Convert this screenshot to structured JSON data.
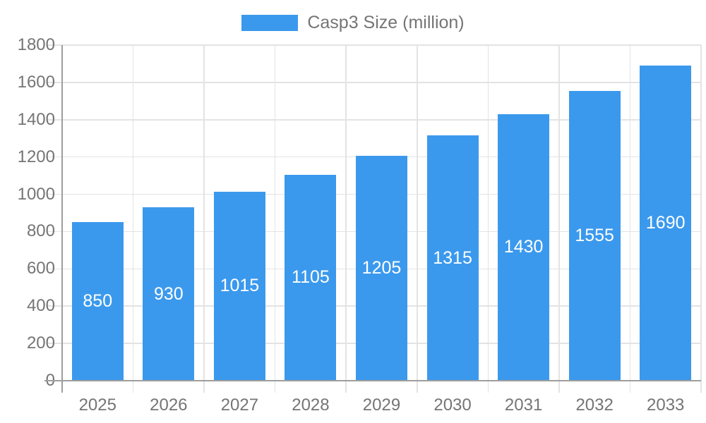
{
  "legend": {
    "label": "Casp3 Size (million)"
  },
  "chart_data": {
    "type": "bar",
    "title": "",
    "xlabel": "",
    "ylabel": "",
    "categories": [
      "2025",
      "2026",
      "2027",
      "2028",
      "2029",
      "2030",
      "2031",
      "2032",
      "2033"
    ],
    "series": [
      {
        "name": "Casp3 Size (million)",
        "values": [
          850,
          930,
          1015,
          1105,
          1205,
          1315,
          1430,
          1555,
          1690
        ]
      }
    ],
    "value_labels": [
      "850",
      "930",
      "1015",
      "1105",
      "1205",
      "1315",
      "1430",
      "1555",
      "1690"
    ],
    "value_label_position": "inside-center",
    "ylim": [
      0,
      1800
    ],
    "yticks": [
      0,
      200,
      400,
      600,
      800,
      1000,
      1200,
      1400,
      1600,
      1800
    ],
    "grid": true,
    "legend_position": "top-center",
    "colors": {
      "bar": "#3B99ED",
      "value_label": "#FFFFFF",
      "axis_text": "#757575",
      "grid_line": "#E3E3E3",
      "axis_line": "#9E9E9E",
      "background": "#FFFFFF"
    }
  }
}
